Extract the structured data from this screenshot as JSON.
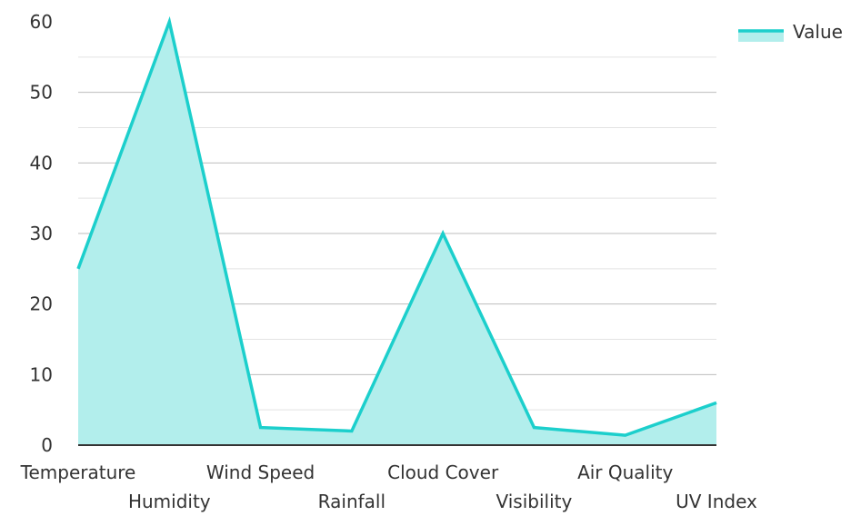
{
  "chart_data": {
    "type": "area",
    "categories": [
      "Temperature",
      "Humidity",
      "Wind Speed",
      "Rainfall",
      "Cloud Cover",
      "Visibility",
      "Air Quality",
      "UV Index"
    ],
    "series": [
      {
        "name": "Value",
        "values": [
          25,
          60,
          2.5,
          2,
          30,
          2.5,
          1.4,
          6
        ]
      }
    ],
    "ylim": [
      0,
      60
    ],
    "yticks": [
      0,
      10,
      20,
      30,
      40,
      50,
      60
    ],
    "grid": true,
    "legend_position": "top-right",
    "colors": {
      "line": "#1ccfcc",
      "fill": "#b2eeec",
      "grid_major": "#bdbdbd",
      "grid_minor": "#e3e3e3",
      "axis": "#333333",
      "text": "#333333"
    }
  }
}
